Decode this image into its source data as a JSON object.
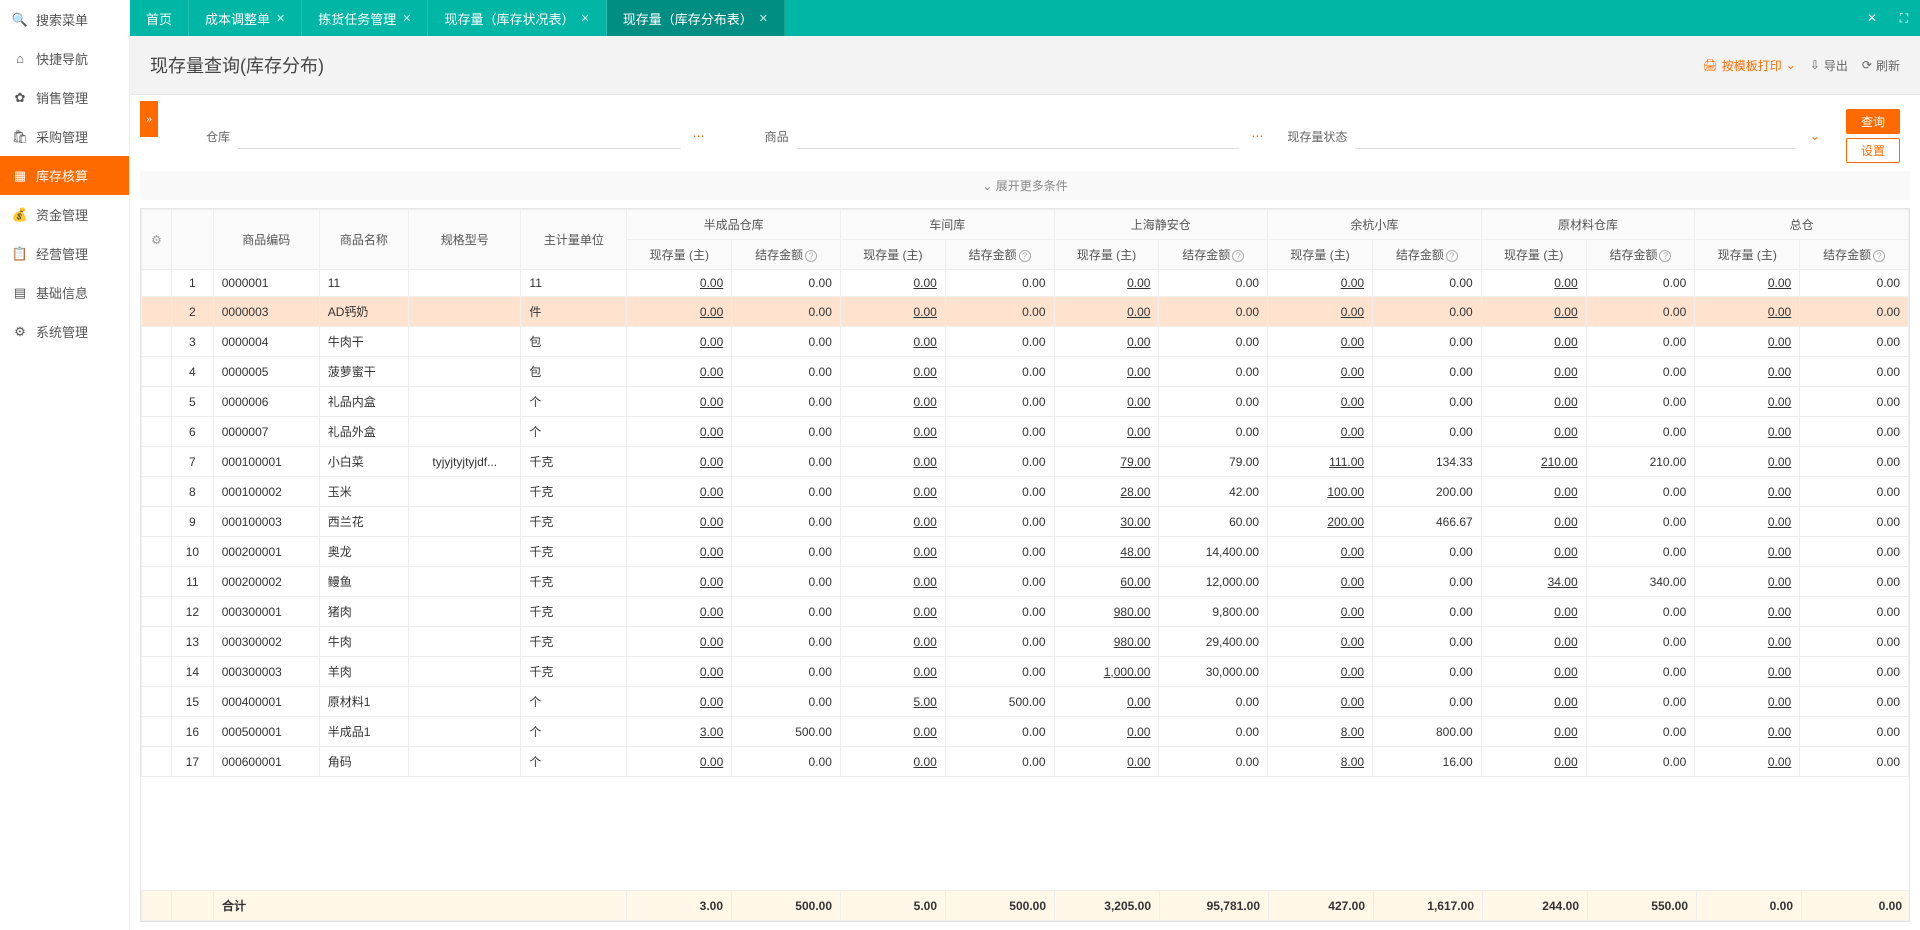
{
  "sidebar": {
    "items": [
      {
        "icon": "search",
        "label": "搜索菜单"
      },
      {
        "icon": "nav",
        "label": "快捷导航"
      },
      {
        "icon": "sale",
        "label": "销售管理"
      },
      {
        "icon": "buy",
        "label": "采购管理"
      },
      {
        "icon": "stock",
        "label": "库存核算"
      },
      {
        "icon": "fund",
        "label": "资金管理"
      },
      {
        "icon": "ops",
        "label": "经营管理"
      },
      {
        "icon": "base",
        "label": "基础信息"
      },
      {
        "icon": "sys",
        "label": "系统管理"
      }
    ],
    "activeIndex": 4
  },
  "tabs": {
    "items": [
      {
        "label": "首页",
        "closable": false
      },
      {
        "label": "成本调整单",
        "closable": true
      },
      {
        "label": "拣货任务管理",
        "closable": true
      },
      {
        "label": "现存量（库存状况表）",
        "closable": true
      },
      {
        "label": "现存量（库存分布表）",
        "closable": true
      }
    ],
    "activeIndex": 4
  },
  "page": {
    "title": "现存量查询(库存分布)",
    "actions": {
      "print": "按模板打印",
      "export": "导出",
      "refresh": "刷新"
    }
  },
  "filters": {
    "f1": {
      "label": "仓库"
    },
    "f2": {
      "label": "商品"
    },
    "f3": {
      "label": "现存量状态"
    },
    "queryBtn": "查询",
    "settingsBtn": "设置",
    "expand": "展开更多条件"
  },
  "table": {
    "fixedHeaders": [
      "商品编码",
      "商品名称",
      "规格型号",
      "主计量单位"
    ],
    "warehouses": [
      "半成品仓库",
      "车间库",
      "上海静安仓",
      "余杭小库",
      "原材料仓库",
      "总仓"
    ],
    "subHeaders": {
      "qty": "现存量 (主)",
      "amt": "结存金额"
    },
    "highlightRow": 1,
    "rows": [
      {
        "idx": "1",
        "code": "0000001",
        "name": "11",
        "spec": "",
        "unit": "11",
        "vals": [
          "0.00",
          "0.00",
          "0.00",
          "0.00",
          "0.00",
          "0.00",
          "0.00",
          "0.00",
          "0.00",
          "0.00",
          "0.00",
          "0.00"
        ]
      },
      {
        "idx": "2",
        "code": "0000003",
        "name": "AD钙奶",
        "spec": "",
        "unit": "件",
        "vals": [
          "0.00",
          "0.00",
          "0.00",
          "0.00",
          "0.00",
          "0.00",
          "0.00",
          "0.00",
          "0.00",
          "0.00",
          "0.00",
          "0.00"
        ]
      },
      {
        "idx": "3",
        "code": "0000004",
        "name": "牛肉干",
        "spec": "",
        "unit": "包",
        "vals": [
          "0.00",
          "0.00",
          "0.00",
          "0.00",
          "0.00",
          "0.00",
          "0.00",
          "0.00",
          "0.00",
          "0.00",
          "0.00",
          "0.00"
        ]
      },
      {
        "idx": "4",
        "code": "0000005",
        "name": "菠萝蜜干",
        "spec": "",
        "unit": "包",
        "vals": [
          "0.00",
          "0.00",
          "0.00",
          "0.00",
          "0.00",
          "0.00",
          "0.00",
          "0.00",
          "0.00",
          "0.00",
          "0.00",
          "0.00"
        ]
      },
      {
        "idx": "5",
        "code": "0000006",
        "name": "礼品内盒",
        "spec": "",
        "unit": "个",
        "vals": [
          "0.00",
          "0.00",
          "0.00",
          "0.00",
          "0.00",
          "0.00",
          "0.00",
          "0.00",
          "0.00",
          "0.00",
          "0.00",
          "0.00"
        ]
      },
      {
        "idx": "6",
        "code": "0000007",
        "name": "礼品外盒",
        "spec": "",
        "unit": "个",
        "vals": [
          "0.00",
          "0.00",
          "0.00",
          "0.00",
          "0.00",
          "0.00",
          "0.00",
          "0.00",
          "0.00",
          "0.00",
          "0.00",
          "0.00"
        ]
      },
      {
        "idx": "7",
        "code": "000100001",
        "name": "小白菜",
        "spec": "tyjyjtyjtyjdf...",
        "unit": "千克",
        "vals": [
          "0.00",
          "0.00",
          "0.00",
          "0.00",
          "79.00",
          "79.00",
          "111.00",
          "134.33",
          "210.00",
          "210.00",
          "0.00",
          "0.00"
        ]
      },
      {
        "idx": "8",
        "code": "000100002",
        "name": "玉米",
        "spec": "",
        "unit": "千克",
        "vals": [
          "0.00",
          "0.00",
          "0.00",
          "0.00",
          "28.00",
          "42.00",
          "100.00",
          "200.00",
          "0.00",
          "0.00",
          "0.00",
          "0.00"
        ]
      },
      {
        "idx": "9",
        "code": "000100003",
        "name": "西兰花",
        "spec": "",
        "unit": "千克",
        "vals": [
          "0.00",
          "0.00",
          "0.00",
          "0.00",
          "30.00",
          "60.00",
          "200.00",
          "466.67",
          "0.00",
          "0.00",
          "0.00",
          "0.00"
        ]
      },
      {
        "idx": "10",
        "code": "000200001",
        "name": "奥龙",
        "spec": "",
        "unit": "千克",
        "vals": [
          "0.00",
          "0.00",
          "0.00",
          "0.00",
          "48.00",
          "14,400.00",
          "0.00",
          "0.00",
          "0.00",
          "0.00",
          "0.00",
          "0.00"
        ]
      },
      {
        "idx": "11",
        "code": "000200002",
        "name": "鳗鱼",
        "spec": "",
        "unit": "千克",
        "vals": [
          "0.00",
          "0.00",
          "0.00",
          "0.00",
          "60.00",
          "12,000.00",
          "0.00",
          "0.00",
          "34.00",
          "340.00",
          "0.00",
          "0.00"
        ]
      },
      {
        "idx": "12",
        "code": "000300001",
        "name": "猪肉",
        "spec": "",
        "unit": "千克",
        "vals": [
          "0.00",
          "0.00",
          "0.00",
          "0.00",
          "980.00",
          "9,800.00",
          "0.00",
          "0.00",
          "0.00",
          "0.00",
          "0.00",
          "0.00"
        ]
      },
      {
        "idx": "13",
        "code": "000300002",
        "name": "牛肉",
        "spec": "",
        "unit": "千克",
        "vals": [
          "0.00",
          "0.00",
          "0.00",
          "0.00",
          "980.00",
          "29,400.00",
          "0.00",
          "0.00",
          "0.00",
          "0.00",
          "0.00",
          "0.00"
        ]
      },
      {
        "idx": "14",
        "code": "000300003",
        "name": "羊肉",
        "spec": "",
        "unit": "千克",
        "vals": [
          "0.00",
          "0.00",
          "0.00",
          "0.00",
          "1,000.00",
          "30,000.00",
          "0.00",
          "0.00",
          "0.00",
          "0.00",
          "0.00",
          "0.00"
        ]
      },
      {
        "idx": "15",
        "code": "000400001",
        "name": "原材料1",
        "spec": "",
        "unit": "个",
        "vals": [
          "0.00",
          "0.00",
          "5.00",
          "500.00",
          "0.00",
          "0.00",
          "0.00",
          "0.00",
          "0.00",
          "0.00",
          "0.00",
          "0.00"
        ]
      },
      {
        "idx": "16",
        "code": "000500001",
        "name": "半成品1",
        "spec": "",
        "unit": "个",
        "vals": [
          "3.00",
          "500.00",
          "0.00",
          "0.00",
          "0.00",
          "0.00",
          "8.00",
          "800.00",
          "0.00",
          "0.00",
          "0.00",
          "0.00"
        ]
      },
      {
        "idx": "17",
        "code": "000600001",
        "name": "角码",
        "spec": "",
        "unit": "个",
        "vals": [
          "0.00",
          "0.00",
          "0.00",
          "0.00",
          "0.00",
          "0.00",
          "8.00",
          "16.00",
          "0.00",
          "0.00",
          "0.00",
          "0.00"
        ]
      }
    ],
    "footer": {
      "label": "合计",
      "vals": [
        "3.00",
        "500.00",
        "5.00",
        "500.00",
        "3,205.00",
        "95,781.00",
        "427.00",
        "1,617.00",
        "244.00",
        "550.00",
        "0.00",
        "0.00"
      ]
    }
  },
  "colors": {
    "accent": "#ff6a00",
    "teal": "#00b6a5",
    "tealDark": "#008e82",
    "highlight": "#ffe3cf",
    "footerBg": "#fff7e8"
  }
}
